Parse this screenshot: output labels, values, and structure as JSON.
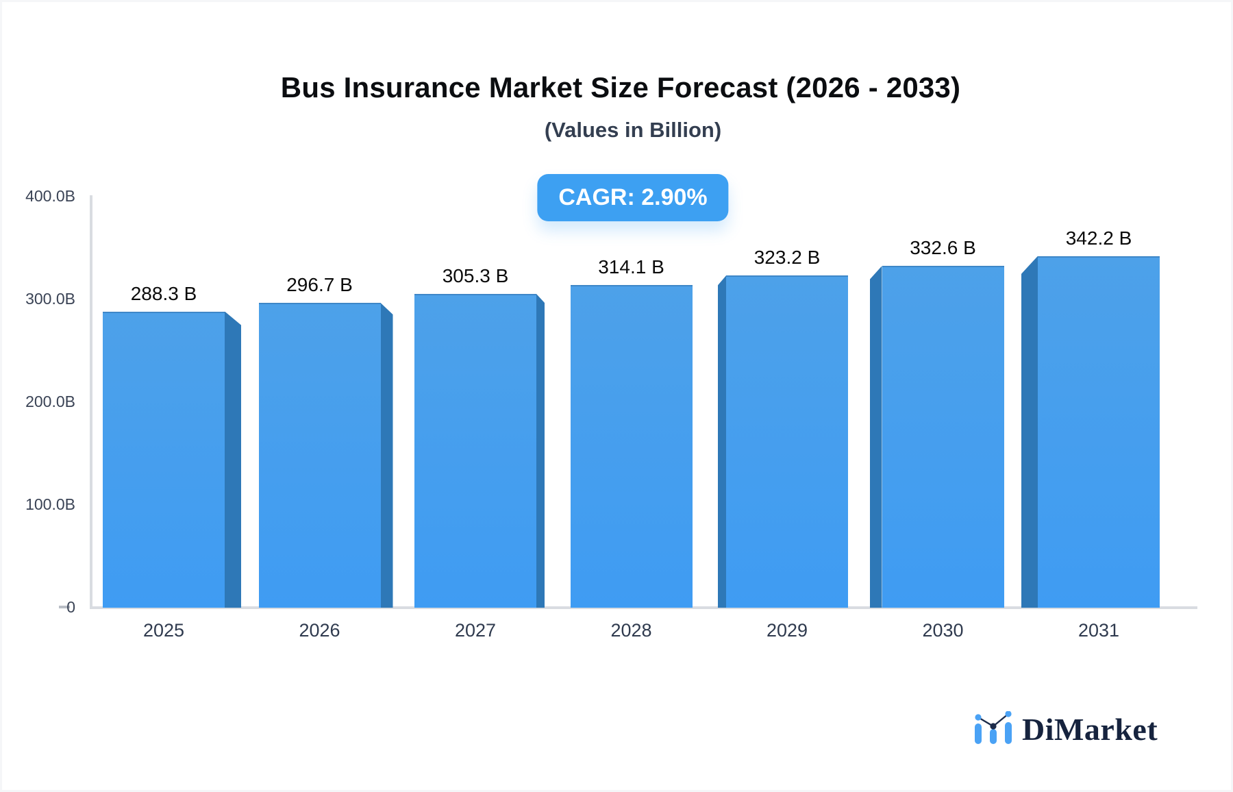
{
  "header": {
    "title": "Bus Insurance Market Size Forecast (2026 - 2033)",
    "subtitle": "(Values in Billion)",
    "cagr_badge": "CAGR: 2.90%"
  },
  "chart_data": {
    "type": "bar",
    "title": "Bus Insurance Market Size Forecast (2026 - 2033)",
    "subtitle": "(Values in Billion)",
    "categories": [
      "2025",
      "2026",
      "2027",
      "2028",
      "2029",
      "2030",
      "2031"
    ],
    "values": [
      288.3,
      296.7,
      305.3,
      314.1,
      323.2,
      332.6,
      342.2
    ],
    "value_labels": [
      "288.3 B",
      "296.7 B",
      "305.3 B",
      "314.1 B",
      "323.2 B",
      "332.6 B",
      "342.2 B"
    ],
    "cagr": "2.90%",
    "xlabel": "",
    "ylabel": "",
    "ylim": [
      0,
      400
    ],
    "y_tick_values": [
      0,
      100,
      200,
      300,
      400
    ],
    "y_tick_labels": [
      "0",
      "100.0B",
      "200.0B",
      "300.0B",
      "400.0B"
    ],
    "grid": false,
    "legend": "none",
    "bar_style": "3d-beveled-blue"
  },
  "branding": {
    "logo_text": "DiMarket",
    "logo_icon": "mini-bar-line-chart-icon"
  },
  "colors": {
    "bar_face_top": "#4da1e9",
    "bar_face_bottom": "#3f9cf3",
    "bar_side": "#2e78b7",
    "badge_bg": "#3da0f2",
    "badge_text": "#ffffff",
    "axis_line": "#d9dce1",
    "axis_label": "#3a4355",
    "x_label": "#2f3a4e",
    "value_label": "#0b0b0b",
    "title": "#0b0d10",
    "subtitle": "#333e50",
    "logo_text": "#16233e",
    "logo_accent": "#4aa2f5",
    "logo_dark": "#1c2b4a"
  }
}
